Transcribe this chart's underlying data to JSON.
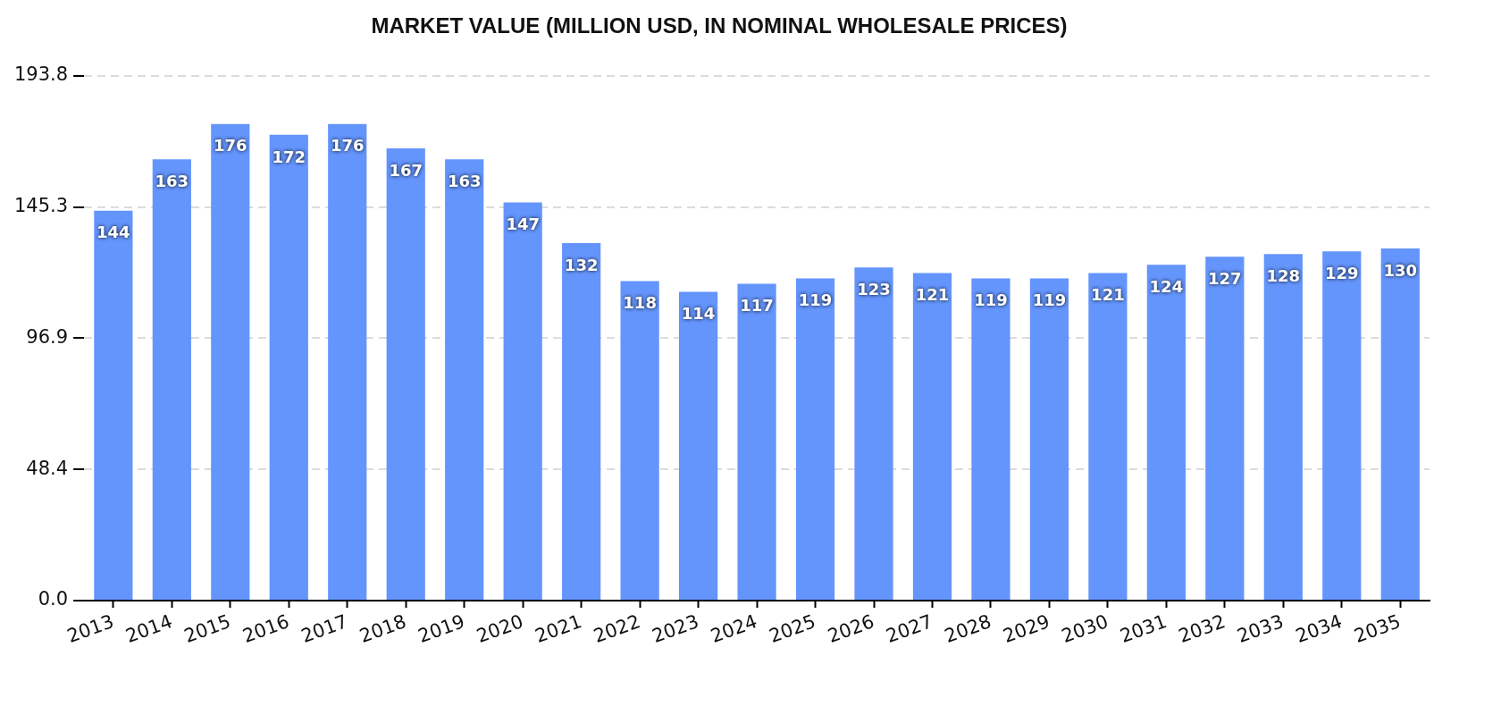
{
  "chart_data": {
    "type": "bar",
    "title": "MARKET VALUE (MILLION USD, IN NOMINAL WHOLESALE PRICES)",
    "categories": [
      "2013",
      "2014",
      "2015",
      "2016",
      "2017",
      "2018",
      "2019",
      "2020",
      "2021",
      "2022",
      "2023",
      "2024",
      "2025",
      "2026",
      "2027",
      "2028",
      "2029",
      "2030",
      "2031",
      "2032",
      "2033",
      "2034",
      "2035"
    ],
    "values": [
      144,
      163,
      176,
      172,
      176,
      167,
      163,
      147,
      132,
      118,
      114,
      117,
      119,
      123,
      121,
      119,
      119,
      121,
      124,
      127,
      128,
      129,
      130
    ],
    "color": "#6495fd",
    "ylim": [
      0,
      193.8
    ],
    "yticks": [
      {
        "value": 0,
        "label": "0.0"
      },
      48.4,
      96.9,
      145.3,
      193.8
    ],
    "grid": "y",
    "data_labels": true
  }
}
